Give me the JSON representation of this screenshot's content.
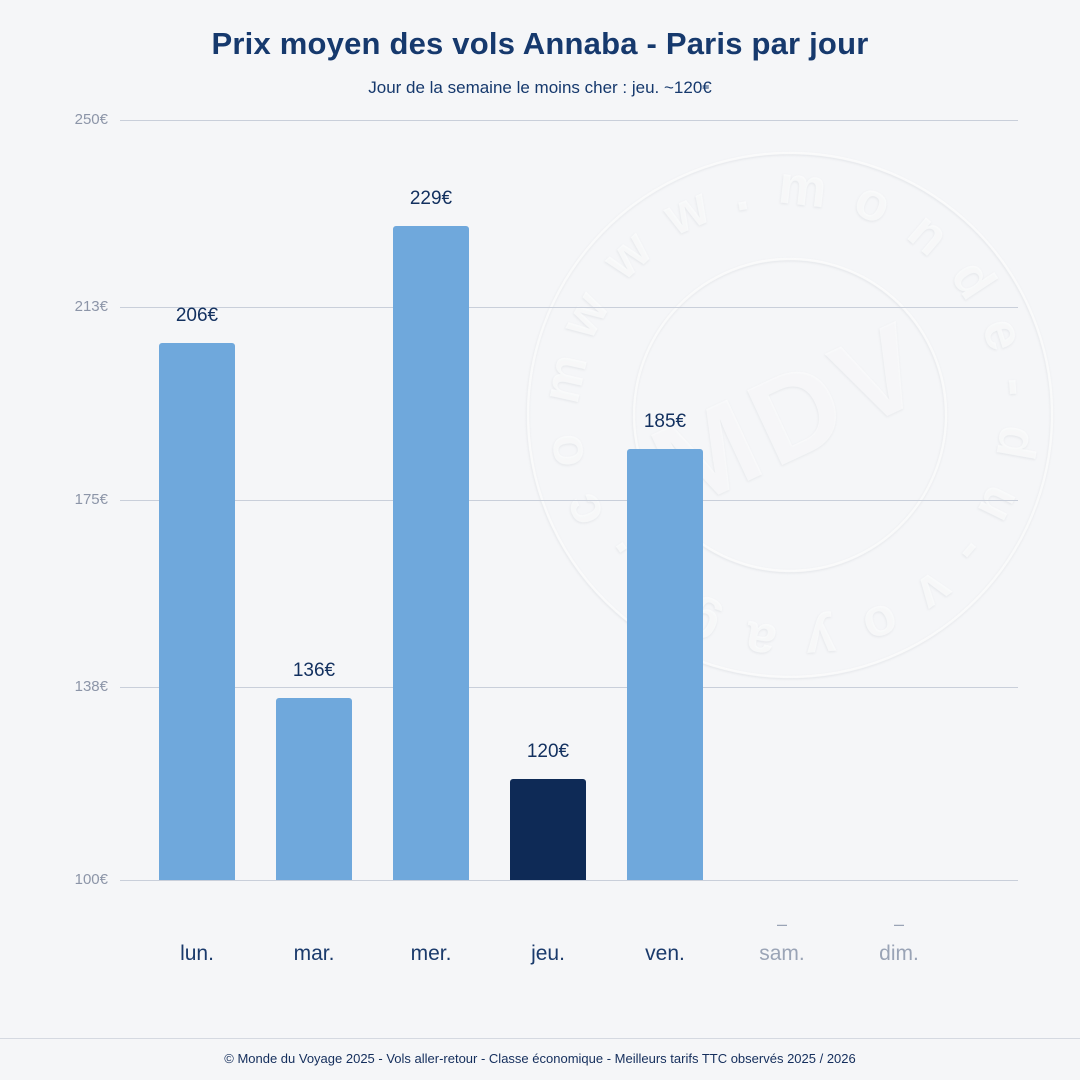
{
  "header": {
    "title": "Prix moyen des vols Annaba - Paris par jour",
    "subtitle": "Jour de la semaine le moins cher : jeu. ~120€"
  },
  "watermark": {
    "ring_text": "www.monde-du-voyage.com",
    "center_text": "MDV"
  },
  "footer": {
    "text": "© Monde du Voyage 2025 - Vols aller-retour - Classe économique - Meilleurs tarifs TTC observés 2025 / 2026"
  },
  "chart_data": {
    "type": "bar",
    "title": "Prix moyen des vols Annaba - Paris par jour",
    "subtitle": "Jour de la semaine le moins cher : jeu. ~120€",
    "categories": [
      "lun.",
      "mar.",
      "mer.",
      "jeu.",
      "ven.",
      "sam.",
      "dim."
    ],
    "values": [
      206,
      136,
      229,
      120,
      185,
      null,
      null
    ],
    "value_labels": [
      "206€",
      "136€",
      "229€",
      "120€",
      "185€",
      "–",
      "–"
    ],
    "highlight_index": 3,
    "yticks": [
      250,
      213,
      175,
      138,
      100
    ],
    "ytick_labels": [
      "250€",
      "213€",
      "175€",
      "138€",
      "100€"
    ],
    "ylim": [
      100,
      250
    ],
    "grid": true,
    "legend": "none",
    "colors": {
      "background": "#f5f6f8",
      "bar": "#6fa8dc",
      "highlight": "#0e2a56",
      "grid": "#c9cfda",
      "tick_text": "#8c95a8",
      "value_text": "#12305f",
      "category_text": "#1a3a6b",
      "empty_text": "#9aa4b6",
      "title_text": "#16396d"
    }
  }
}
